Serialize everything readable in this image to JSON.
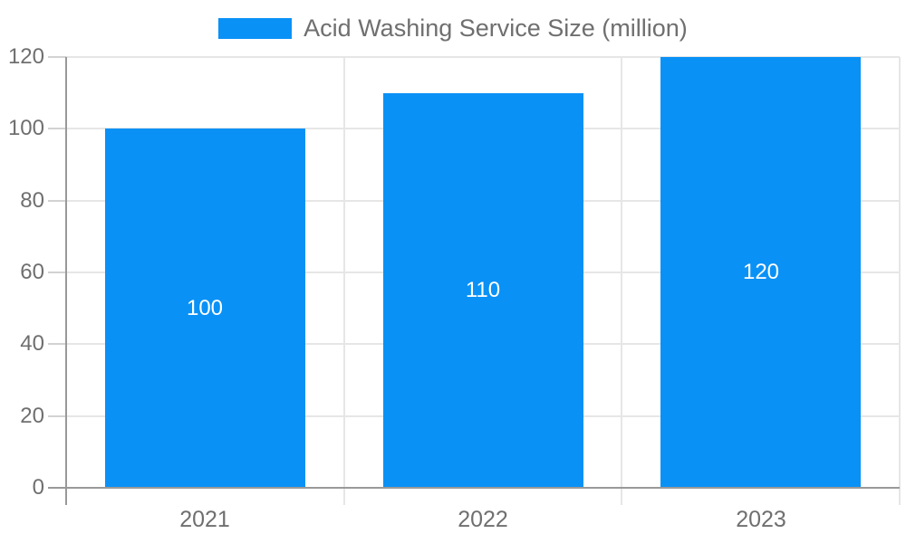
{
  "chart_data": {
    "type": "bar",
    "title": "Acid Washing Service Size (million)",
    "legend": {
      "label": "Acid Washing Service Size (million)",
      "position": "top-center",
      "swatch_color": "#0a91f6"
    },
    "categories": [
      "2021",
      "2022",
      "2023"
    ],
    "series": [
      {
        "name": "Acid Washing Service Size (million)",
        "values": [
          100,
          110,
          120
        ],
        "color": "#0a91f6",
        "data_labels": [
          "100",
          "110",
          "120"
        ],
        "data_label_color": "#ffffff"
      }
    ],
    "xlabel": "",
    "ylabel": "",
    "ylim": [
      0,
      120
    ],
    "yticks": [
      0,
      20,
      40,
      60,
      80,
      100,
      120
    ],
    "grid": true,
    "bar_width_ratio": 0.72,
    "colors": {
      "axis": "#999999",
      "gridline": "#e6e6e6",
      "tick": "#d2d2d2",
      "tick_label": "#6f6f6f"
    }
  }
}
